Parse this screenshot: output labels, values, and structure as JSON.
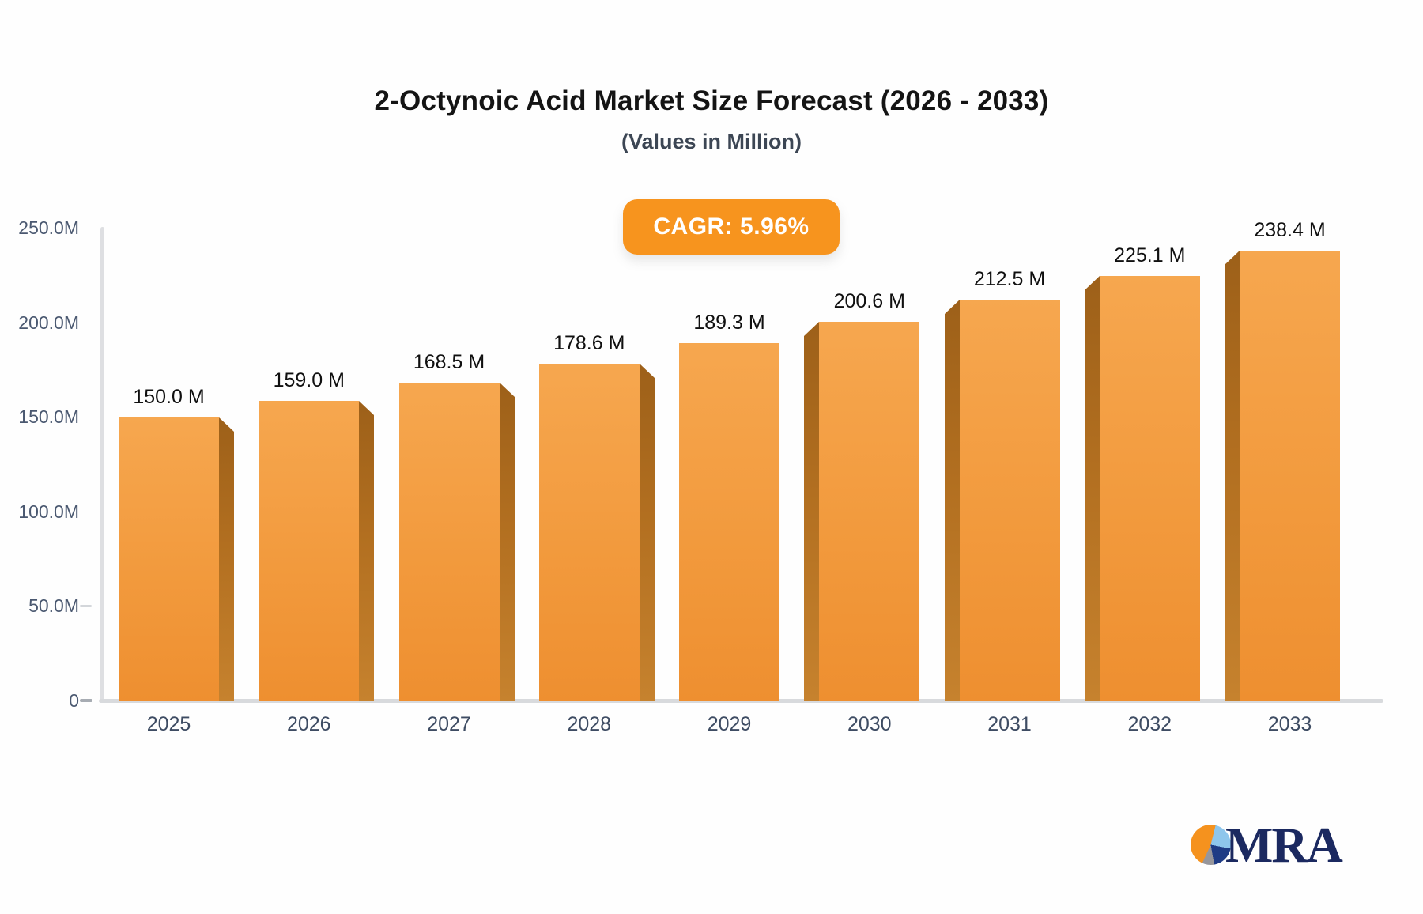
{
  "title": "2-Octynoic Acid Market Size Forecast (2026 - 2033)",
  "subtitle": "(Values in Million)",
  "badge": {
    "label": "CAGR: 5.96%"
  },
  "logo": {
    "text": "MRA",
    "icon": "pie-chart-icon"
  },
  "colors": {
    "bar_face_top": "#f6a74f",
    "bar_face_bottom": "#ee8f30",
    "bar_side_dark": "#9d6019",
    "badge_background": "#f7941e",
    "badge_text": "#ffffff",
    "axis_line": "#d8dadd",
    "axis_label": "#4a5870",
    "value_label": "#101010",
    "logo_navy": "#1b2960",
    "logo_orange": "#f5921e",
    "logo_lightblue": "#8ec6ec",
    "logo_gray": "#97969b"
  },
  "chart_data": {
    "type": "bar",
    "title": "2-Octynoic Acid Market Size Forecast (2026 - 2033)",
    "subtitle": "(Values in Million)",
    "cagr": "CAGR: 5.96%",
    "categories": [
      "2025",
      "2026",
      "2027",
      "2028",
      "2029",
      "2030",
      "2031",
      "2032",
      "2033"
    ],
    "values": [
      150.0,
      159.0,
      168.5,
      178.6,
      189.3,
      200.6,
      212.5,
      225.1,
      238.4
    ],
    "bar_labels": [
      "150.0 M",
      "159.0 M",
      "168.5 M",
      "178.6 M",
      "189.3 M",
      "200.6 M",
      "212.5 M",
      "225.1 M",
      "238.4 M"
    ],
    "xlabel": "",
    "ylabel": "",
    "ytick_labels": [
      "250.0M",
      "200.0M",
      "150.0M",
      "100.0M",
      "50.0M",
      "0"
    ],
    "ylim": [
      0,
      250
    ],
    "grid": "off",
    "legend": "none",
    "bar_style": "3d-perspective-orange"
  }
}
